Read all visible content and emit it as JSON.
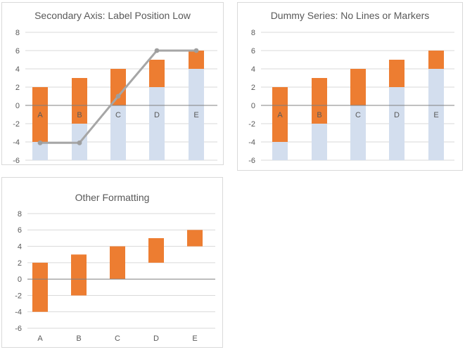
{
  "colors": {
    "orange": "#ED7D31",
    "light_blue": "#D3DEEE",
    "line_gray": "#A6A6A6",
    "marker_gray": "#9E9E9E",
    "gridline": "#D9D9D9",
    "zero_axis": "#808080",
    "text": "#595959",
    "panel_border": "#D9D9D9"
  },
  "chart_data": [
    {
      "type": "bar",
      "title": "Secondary Axis: Label Position Low",
      "categories": [
        "A",
        "B",
        "C",
        "D",
        "E"
      ],
      "ylim": [
        -6,
        8
      ],
      "yticks": [
        8,
        6,
        4,
        2,
        0,
        -2,
        -4,
        -6
      ],
      "grid": true,
      "legend": false,
      "label_position": "below_zero",
      "series": [
        {
          "role": "dummy-base-column",
          "color_key": "light_blue",
          "from": [
            -6,
            -6,
            -6,
            -6,
            -6
          ],
          "to": [
            -4,
            -2,
            0,
            2,
            4
          ]
        },
        {
          "role": "value-column",
          "color_key": "orange",
          "from": [
            -4,
            -2,
            0,
            2,
            4
          ],
          "to": [
            2,
            3,
            4,
            5,
            6
          ]
        },
        {
          "role": "secondary-axis-label-line",
          "color_key": "line_gray",
          "line_values": [
            -4.1,
            -4.1,
            1,
            6,
            6
          ],
          "markers": true
        }
      ]
    },
    {
      "type": "bar",
      "title": "Dummy Series: No Lines or Markers",
      "categories": [
        "A",
        "B",
        "C",
        "D",
        "E"
      ],
      "ylim": [
        -6,
        8
      ],
      "yticks": [
        8,
        6,
        4,
        2,
        0,
        -2,
        -4,
        -6
      ],
      "grid": true,
      "legend": false,
      "label_position": "below_zero",
      "series": [
        {
          "role": "dummy-base-column",
          "color_key": "light_blue",
          "from": [
            -6,
            -6,
            -6,
            -6,
            -6
          ],
          "to": [
            -4,
            -2,
            0,
            2,
            4
          ]
        },
        {
          "role": "value-column",
          "color_key": "orange",
          "from": [
            -4,
            -2,
            0,
            2,
            4
          ],
          "to": [
            2,
            3,
            4,
            5,
            6
          ]
        }
      ]
    },
    {
      "type": "bar",
      "title": "Other Formatting",
      "categories": [
        "A",
        "B",
        "C",
        "D",
        "E"
      ],
      "ylim": [
        -6,
        8
      ],
      "yticks": [
        8,
        6,
        4,
        2,
        0,
        -2,
        -4,
        -6
      ],
      "grid": true,
      "legend": false,
      "label_position": "bottom",
      "series": [
        {
          "role": "value-column",
          "color_key": "orange",
          "from": [
            -4,
            -2,
            0,
            2,
            4
          ],
          "to": [
            2,
            3,
            4,
            5,
            6
          ]
        }
      ]
    }
  ]
}
